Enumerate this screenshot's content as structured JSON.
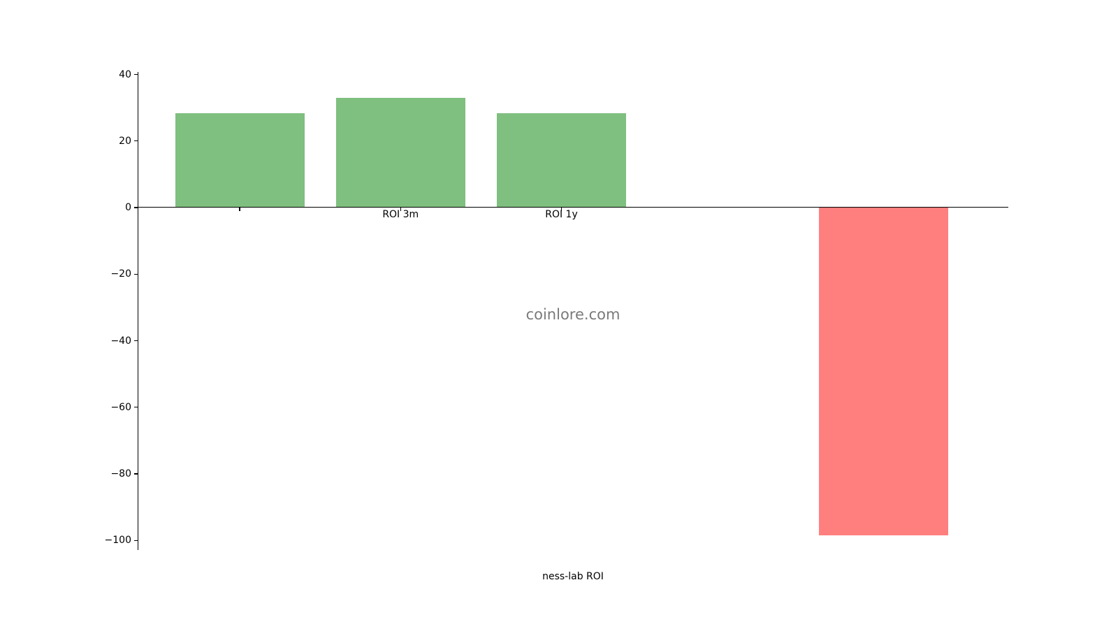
{
  "watermark": "coinlore.com",
  "colors": {
    "positive_bar": "#7fbf7f",
    "negative_bar": "#ff7f7f",
    "axis": "#000000",
    "watermark": "#7a7a7a"
  },
  "chart_data": {
    "type": "bar",
    "title": "",
    "xlabel": "ness-lab ROI",
    "ylabel": "",
    "categories": [
      "",
      "ROI 3m",
      "ROI 1y",
      ""
    ],
    "x_positions": [
      0,
      1,
      2,
      4
    ],
    "values": [
      28.4,
      33,
      28.4,
      -98.5
    ],
    "bar_colors": [
      "#7fbf7f",
      "#7fbf7f",
      "#7fbf7f",
      "#ff7f7f"
    ],
    "yticks": [
      40,
      20,
      0,
      -20,
      -40,
      -60,
      -80,
      -100
    ],
    "ylim": [
      -103,
      42
    ],
    "xlim": [
      -0.64,
      4.78
    ],
    "grid": false,
    "legend": null,
    "annotations": [
      "coinlore.com"
    ]
  }
}
